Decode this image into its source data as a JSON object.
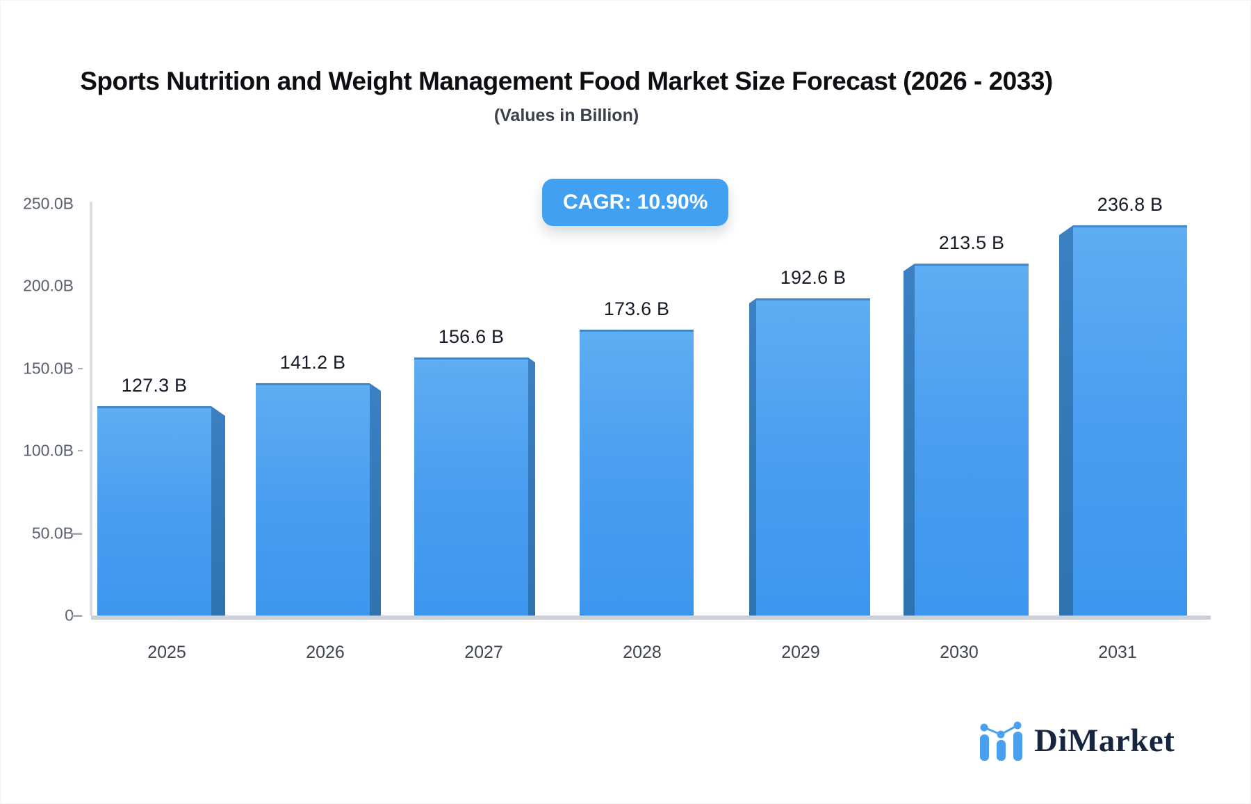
{
  "header": {
    "title": "Sports Nutrition and Weight Management Food Market Size Forecast (2026 - 2033)",
    "subtitle": "(Values in Billion)"
  },
  "badge": {
    "label": "CAGR: 10.90%"
  },
  "chart_data": {
    "type": "bar",
    "title": "Sports Nutrition and Weight Management Food Market Size Forecast (2026 - 2033)",
    "subtitle": "(Values in Billion)",
    "annotation": "CAGR: 10.90%",
    "unit": "Billion",
    "categories": [
      "2025",
      "2026",
      "2027",
      "2028",
      "2029",
      "2030",
      "2031"
    ],
    "values": [
      127.3,
      141.2,
      156.6,
      173.6,
      192.6,
      213.5,
      236.8
    ],
    "value_labels": [
      "127.3 B",
      "141.2 B",
      "156.6 B",
      "173.6 B",
      "192.6 B",
      "213.5 B",
      "236.8 B"
    ],
    "y_ticks": [
      "250.0B",
      "200.0B",
      "150.0B",
      "100.0B",
      "50.0B",
      "0"
    ],
    "ylim": [
      0,
      250
    ],
    "grid": false,
    "legend": false,
    "style_3d": true,
    "bar_color_top": "#5FADF2",
    "bar_color_bottom": "#3D96EE",
    "bar_top_edge_color": "#3F88CC",
    "bar_side_color": "#2E73AF",
    "badge_color": "#42A0F0"
  },
  "branding": {
    "logo_text": "DiMarket",
    "logo_icon": "bar-line-chart-icon",
    "logo_text_color": "#15263E",
    "logo_icon_color": "#4AA0EF"
  }
}
